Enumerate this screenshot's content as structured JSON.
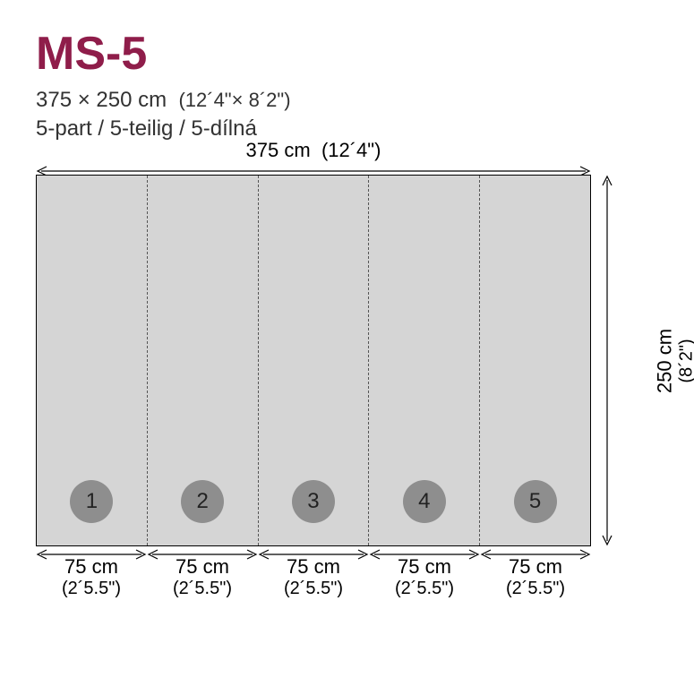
{
  "header": {
    "title": "MS-5",
    "title_color": "#8f1d4a",
    "dims_metric": "375 × 250 cm",
    "dims_imperial": "(12´4\"× 8´2\")",
    "parts": "5-part / 5-teilig / 5-dílná",
    "text_color": "#323232"
  },
  "diagram": {
    "width_label_cm": "375 cm",
    "width_label_imp": "(12´4\")",
    "height_label_cm": "250 cm",
    "height_label_imp": "(8´2\")",
    "panel_fill": "#d5d5d5",
    "circle_fill": "#8e8e8e",
    "circle_text_color": "#222222",
    "border_color": "#000000",
    "dash_color": "#555555",
    "arrow_color": "#000000",
    "panels": [
      {
        "num": "1",
        "w_cm": "75 cm",
        "w_imp": "(2´5.5\")"
      },
      {
        "num": "2",
        "w_cm": "75 cm",
        "w_imp": "(2´5.5\")"
      },
      {
        "num": "3",
        "w_cm": "75 cm",
        "w_imp": "(2´5.5\")"
      },
      {
        "num": "4",
        "w_cm": "75 cm",
        "w_imp": "(2´5.5\")"
      },
      {
        "num": "5",
        "w_cm": "75 cm",
        "w_imp": "(2´5.5\")"
      }
    ]
  }
}
